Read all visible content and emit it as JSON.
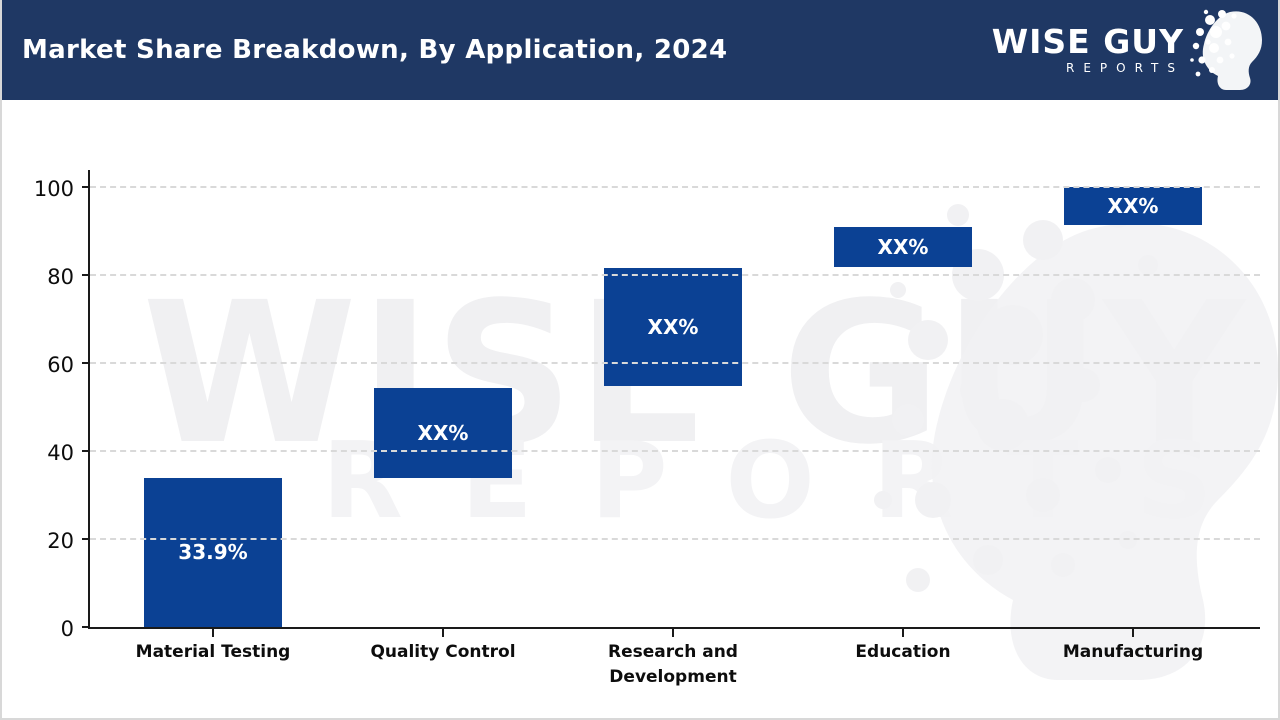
{
  "header": {
    "title": "Market Share Breakdown, By Application, 2024",
    "logo": {
      "line1": "WISE GUY",
      "line2": "REPORTS"
    }
  },
  "watermark": {
    "line1": "WISE GUY",
    "line2": "REPORTS"
  },
  "colors": {
    "header_bg": "#1F3864",
    "bar": "#0B4194",
    "grid": "#D9D9D9",
    "axis": "#1A1A1A",
    "bar_label": "#FFFFFF"
  },
  "chart_data": {
    "type": "bar",
    "subtype": "waterfall",
    "title": "Market Share Breakdown, By Application, 2024",
    "xlabel": "",
    "ylabel": "",
    "ylim": [
      0,
      104
    ],
    "yticks": [
      0,
      20,
      40,
      60,
      80,
      100
    ],
    "grid": "dashed-horizontal",
    "legend": "none",
    "categories": [
      "Material Testing",
      "Quality Control",
      "Research and Development",
      "Education",
      "Manufacturing"
    ],
    "category_display_lines": [
      [
        "Material Testing"
      ],
      [
        "Quality Control"
      ],
      [
        "Research and",
        "Development"
      ],
      [
        "Education"
      ],
      [
        "Manufacturing"
      ]
    ],
    "series": [
      {
        "name": "Market Share",
        "segments": [
          {
            "category": "Material Testing",
            "start": 0,
            "end": 33.9,
            "label": "33.9%"
          },
          {
            "category": "Quality Control",
            "start": 33.9,
            "end": 54.4,
            "label": "XX%"
          },
          {
            "category": "Research and Development",
            "start": 54.7,
            "end": 81.7,
            "label": "XX%"
          },
          {
            "category": "Education",
            "start": 81.9,
            "end": 91.0,
            "label": "XX%"
          },
          {
            "category": "Manufacturing",
            "start": 91.4,
            "end": 100.0,
            "label": "XX%"
          }
        ]
      }
    ]
  }
}
